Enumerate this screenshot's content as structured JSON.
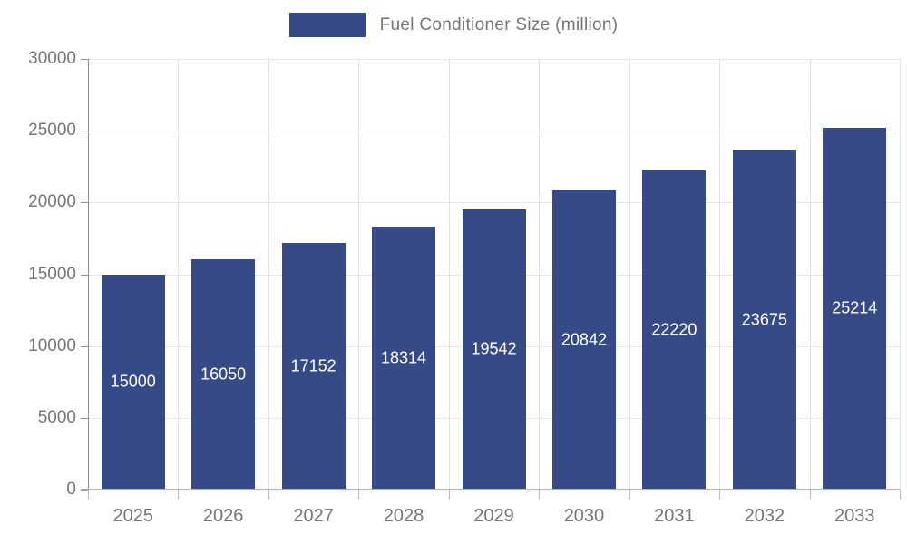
{
  "legend": {
    "label": "Fuel Conditioner Size (million)",
    "swatch_color": "#364A87"
  },
  "chart_data": {
    "type": "bar",
    "title": "Fuel Conditioner Size (million)",
    "categories": [
      "2025",
      "2026",
      "2027",
      "2028",
      "2029",
      "2030",
      "2031",
      "2032",
      "2033"
    ],
    "values": [
      15000,
      16050,
      17152,
      18314,
      19542,
      20842,
      22220,
      23675,
      25214
    ],
    "series": [
      {
        "name": "Fuel Conditioner Size (million)",
        "values": [
          15000,
          16050,
          17152,
          18314,
          19542,
          20842,
          22220,
          23675,
          25214
        ]
      }
    ],
    "xlabel": "",
    "ylabel": "",
    "ylim": [
      0,
      30000
    ],
    "yticks": [
      0,
      5000,
      10000,
      15000,
      20000,
      25000,
      30000
    ],
    "grid": true,
    "legend_position": "top",
    "value_labels": "inside-center",
    "colors": {
      "bar": "#364A87",
      "value_label": "#ffffff",
      "axis_text": "#757575",
      "gridline": "#e6e6e6",
      "axis_line": "#8f8f8f"
    }
  }
}
